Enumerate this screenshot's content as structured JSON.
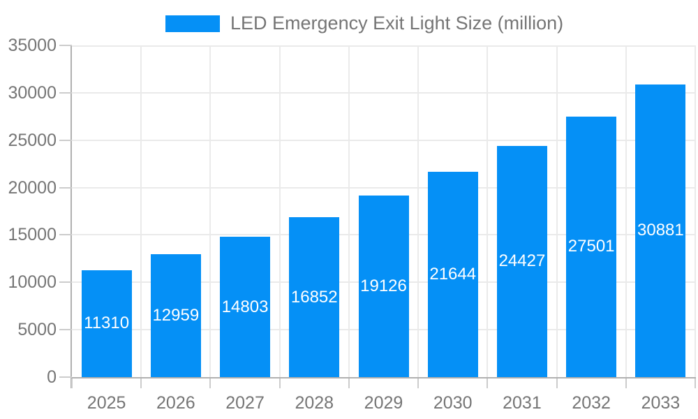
{
  "legend": {
    "label": "LED Emergency Exit Light Size (million)"
  },
  "chart_data": {
    "type": "bar",
    "title": "LED Emergency Exit Light Size (million)",
    "xlabel": "",
    "ylabel": "",
    "categories": [
      "2025",
      "2026",
      "2027",
      "2028",
      "2029",
      "2030",
      "2031",
      "2032",
      "2033"
    ],
    "values": [
      11310,
      12959,
      14803,
      16852,
      19126,
      21644,
      24427,
      27501,
      30881
    ],
    "series_name": "LED Emergency Exit Light Size (million)",
    "ylim": [
      0,
      35000
    ],
    "ytick_interval": 5000,
    "ytick_labels": [
      "0",
      "5000",
      "10000",
      "15000",
      "20000",
      "25000",
      "30000",
      "35000"
    ],
    "grid": true,
    "legend_position": "top-center",
    "value_labels_shown": true,
    "colors": {
      "bar": "#0590f6",
      "value_label": "#ffffff",
      "axis_line": "#b0b0b0",
      "tick": "#cccccc",
      "gridline": "#eaeaea",
      "axis_text": "#757575",
      "background": "#ffffff"
    }
  }
}
